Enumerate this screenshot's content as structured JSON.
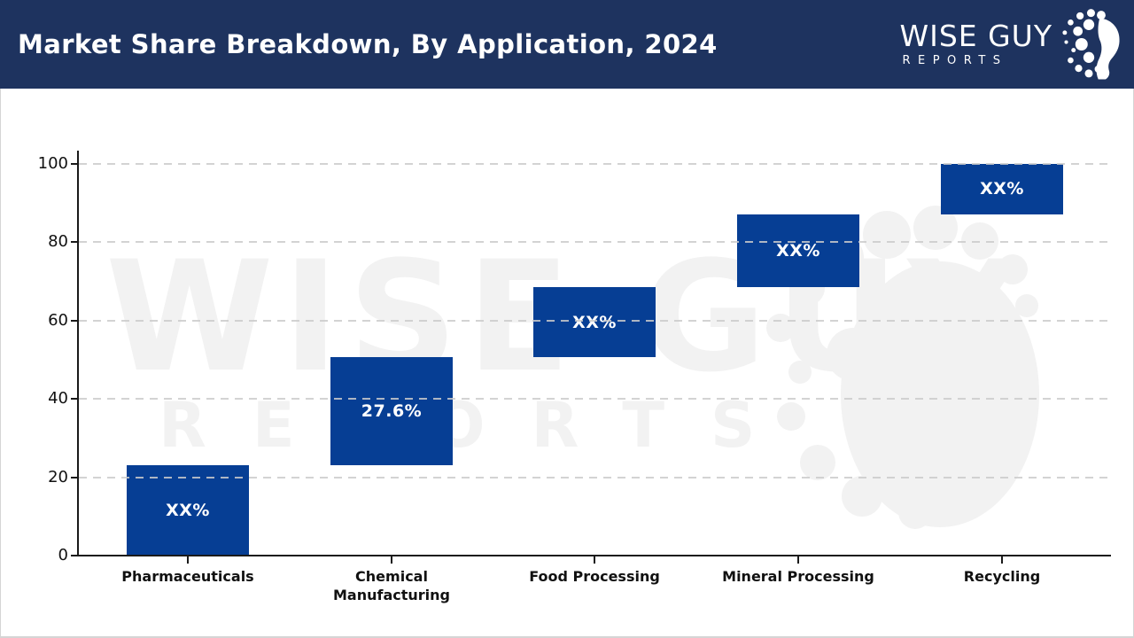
{
  "header": {
    "title": "Market Share Breakdown, By Application, 2024",
    "logo": {
      "name": "WISE GUY",
      "sub": "REPORTS"
    }
  },
  "watermark": {
    "line1": "WISE GUY",
    "line2": "REPORTS"
  },
  "colors": {
    "header_bg": "#1e335f",
    "bar": "#063e94",
    "bar_label": "#ffffff",
    "grid": "#cbcbcb",
    "axis": "#1a1a1a",
    "watermark": "#f2f2f2",
    "border": "#d5d5d5"
  },
  "chart_data": {
    "type": "bar",
    "subtype": "waterfall",
    "title": "Market Share Breakdown, By Application, 2024",
    "units": "percent market share",
    "categories": [
      "Pharmaceuticals",
      "Chemical\nManufacturing",
      "Food Processing",
      "Mineral Processing",
      "Recycling"
    ],
    "segments": [
      {
        "category": "Pharmaceuticals",
        "start": 0,
        "end": 23,
        "label": "XX%"
      },
      {
        "category": "Chemical Manufacturing",
        "start": 23,
        "end": 50.6,
        "label": "27.6%"
      },
      {
        "category": "Food Processing",
        "start": 50.6,
        "end": 68.6,
        "label": "XX%"
      },
      {
        "category": "Mineral Processing",
        "start": 68.6,
        "end": 87.2,
        "label": "XX%"
      },
      {
        "category": "Recycling",
        "start": 87.2,
        "end": 100,
        "label": "XX%"
      }
    ],
    "yticks": [
      0,
      20,
      40,
      60,
      80,
      100
    ],
    "ylim": [
      0,
      103.5
    ],
    "xlabel": "",
    "ylabel": "",
    "grid": true,
    "grid_style": "dashed",
    "legend": "none",
    "bar_color": "#063e94",
    "bar_label_color": "#ffffff"
  }
}
